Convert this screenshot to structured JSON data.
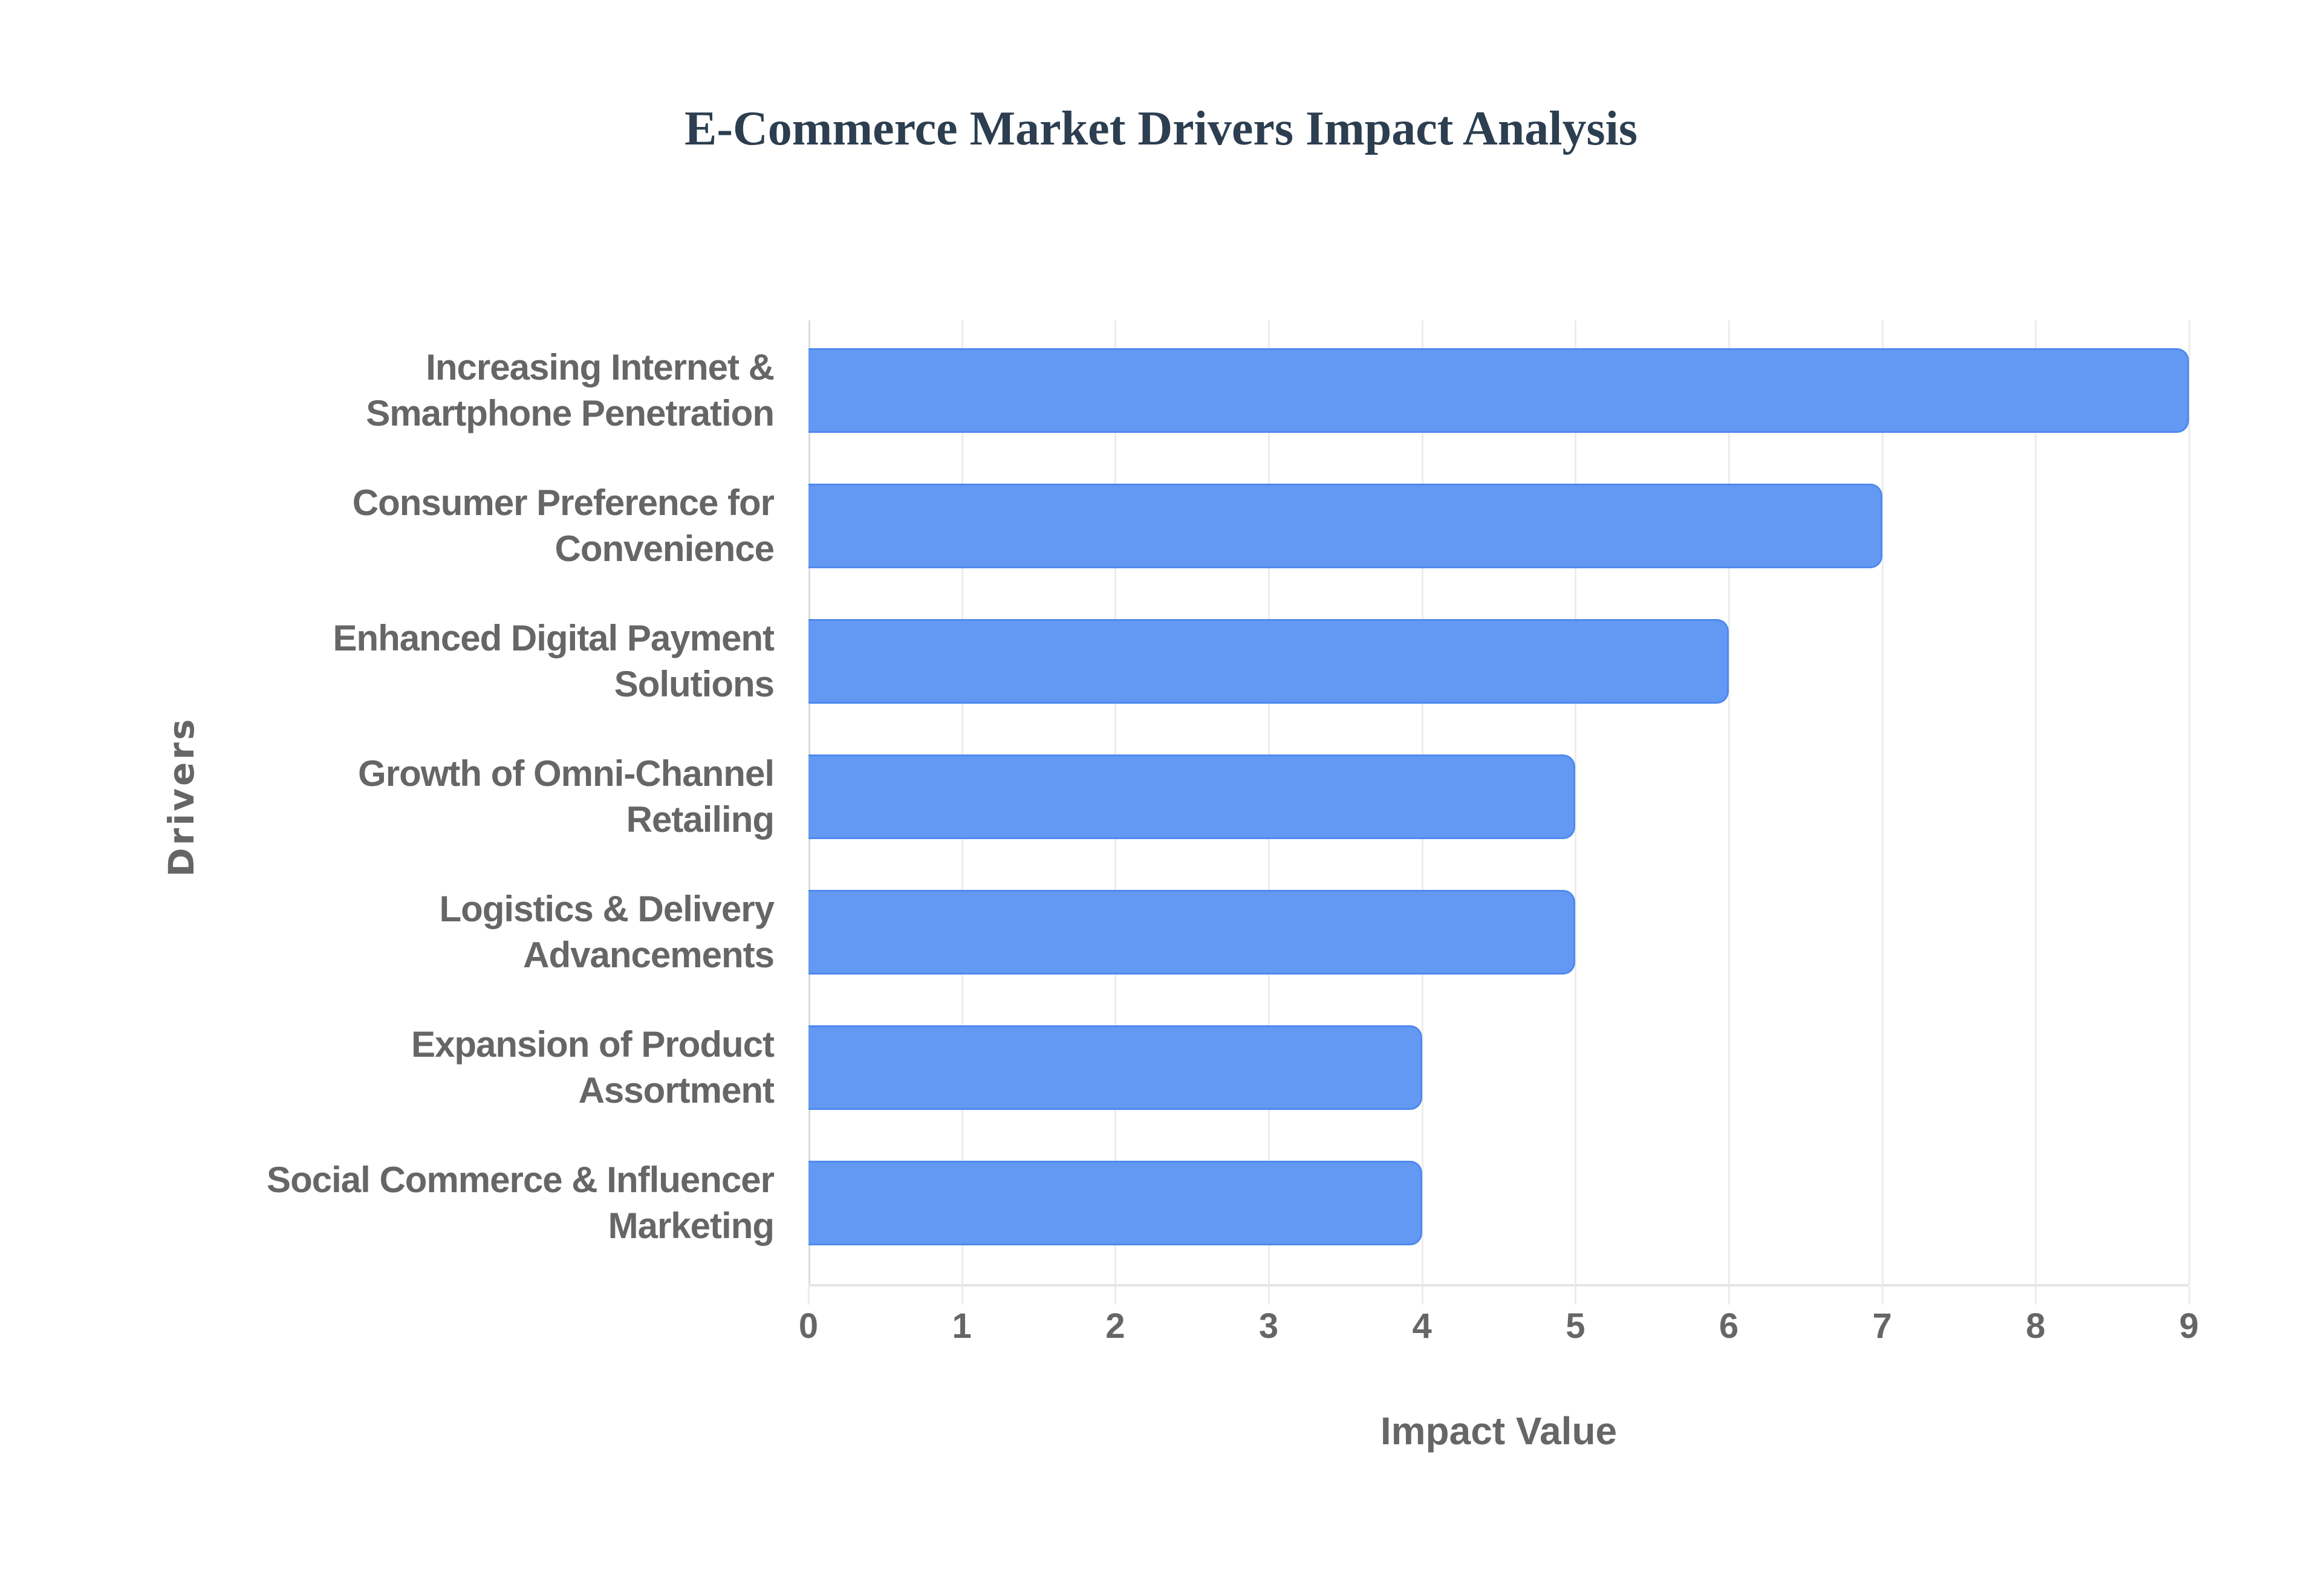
{
  "chart_data": {
    "type": "bar",
    "orientation": "horizontal",
    "title": "E-Commerce Market Drivers Impact Analysis",
    "xlabel": "Impact Value",
    "ylabel": "Drivers",
    "categories": [
      [
        "Increasing Internet &",
        "Smartphone Penetration"
      ],
      [
        "Consumer Preference for",
        "Convenience"
      ],
      [
        "Enhanced Digital Payment",
        "Solutions"
      ],
      [
        "Growth of Omni-Channel",
        "Retailing"
      ],
      [
        "Logistics & Delivery",
        "Advancements"
      ],
      [
        "Expansion of Product",
        "Assortment"
      ],
      [
        "Social Commerce & Influencer",
        "Marketing"
      ]
    ],
    "category_names": [
      "Increasing Internet & Smartphone Penetration",
      "Consumer Preference for Convenience",
      "Enhanced Digital Payment Solutions",
      "Growth of Omni-Channel Retailing",
      "Logistics & Delivery Advancements",
      "Expansion of Product Assortment",
      "Social Commerce & Influencer Marketing"
    ],
    "values": [
      9,
      7,
      6,
      5,
      5,
      4,
      4
    ],
    "xlim": [
      0,
      9
    ],
    "xticks": [
      "0",
      "1",
      "2",
      "3",
      "4",
      "5",
      "6",
      "7",
      "8",
      "9"
    ],
    "grid": "vertical",
    "legend": "none"
  },
  "colors": {
    "bar_fill": "#6399f3",
    "bar_border": "#4f89ee",
    "title": "#2c3e50",
    "text": "#666666",
    "grid": "#ececec"
  }
}
